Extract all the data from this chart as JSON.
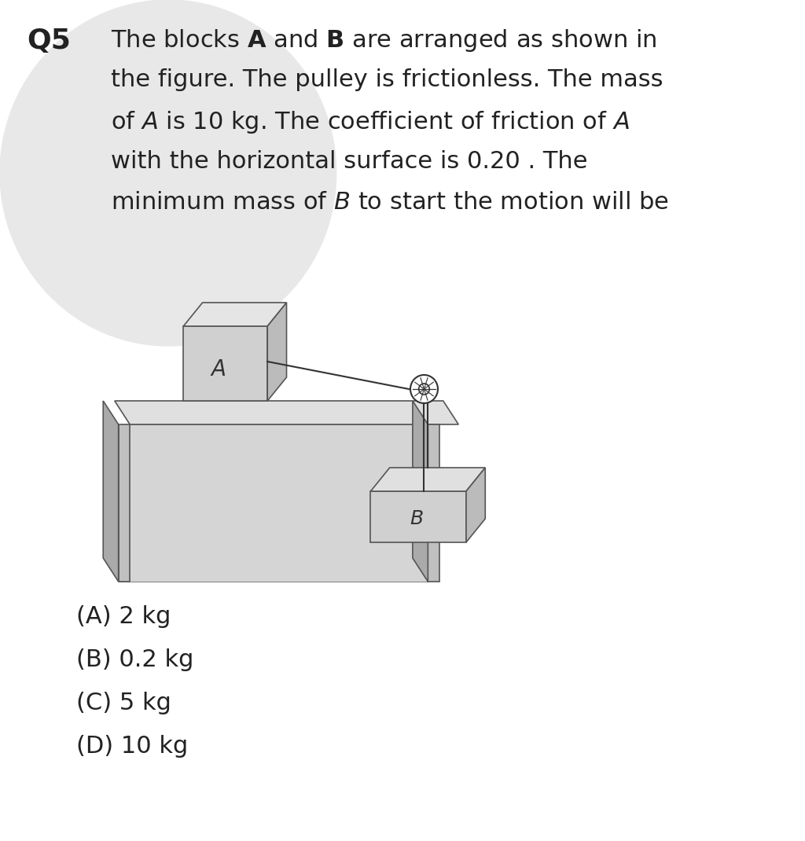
{
  "bg_color": "#f0f0f0",
  "title_q": "Q5",
  "question_text_lines": [
    "The blocks $\\mathbf{A}$ and $\\mathbf{B}$ are arranged as shown in",
    "the figure. The pulley is frictionless. The mass",
    "of $\\mathit{A}$ is 10 kg. The coefficient of friction of $\\mathit{A}$",
    "with the horizontal surface is 0.20 . The",
    "minimum mass of $\\mathit{B}$ to start the motion will be"
  ],
  "options": [
    "(A) 2 kg",
    "(B) 0.2 kg",
    "(C) 5 kg",
    "(D) 10 kg"
  ],
  "table_color_light": "#c8c8c8",
  "table_color_mid": "#aaaaaa",
  "table_color_dark": "#888888",
  "block_color_light": "#d8d8d8",
  "block_color_mid": "#bbbbbb",
  "block_color_dark": "#999999",
  "text_color": "#222222",
  "question_fontsize": 22,
  "options_fontsize": 22
}
